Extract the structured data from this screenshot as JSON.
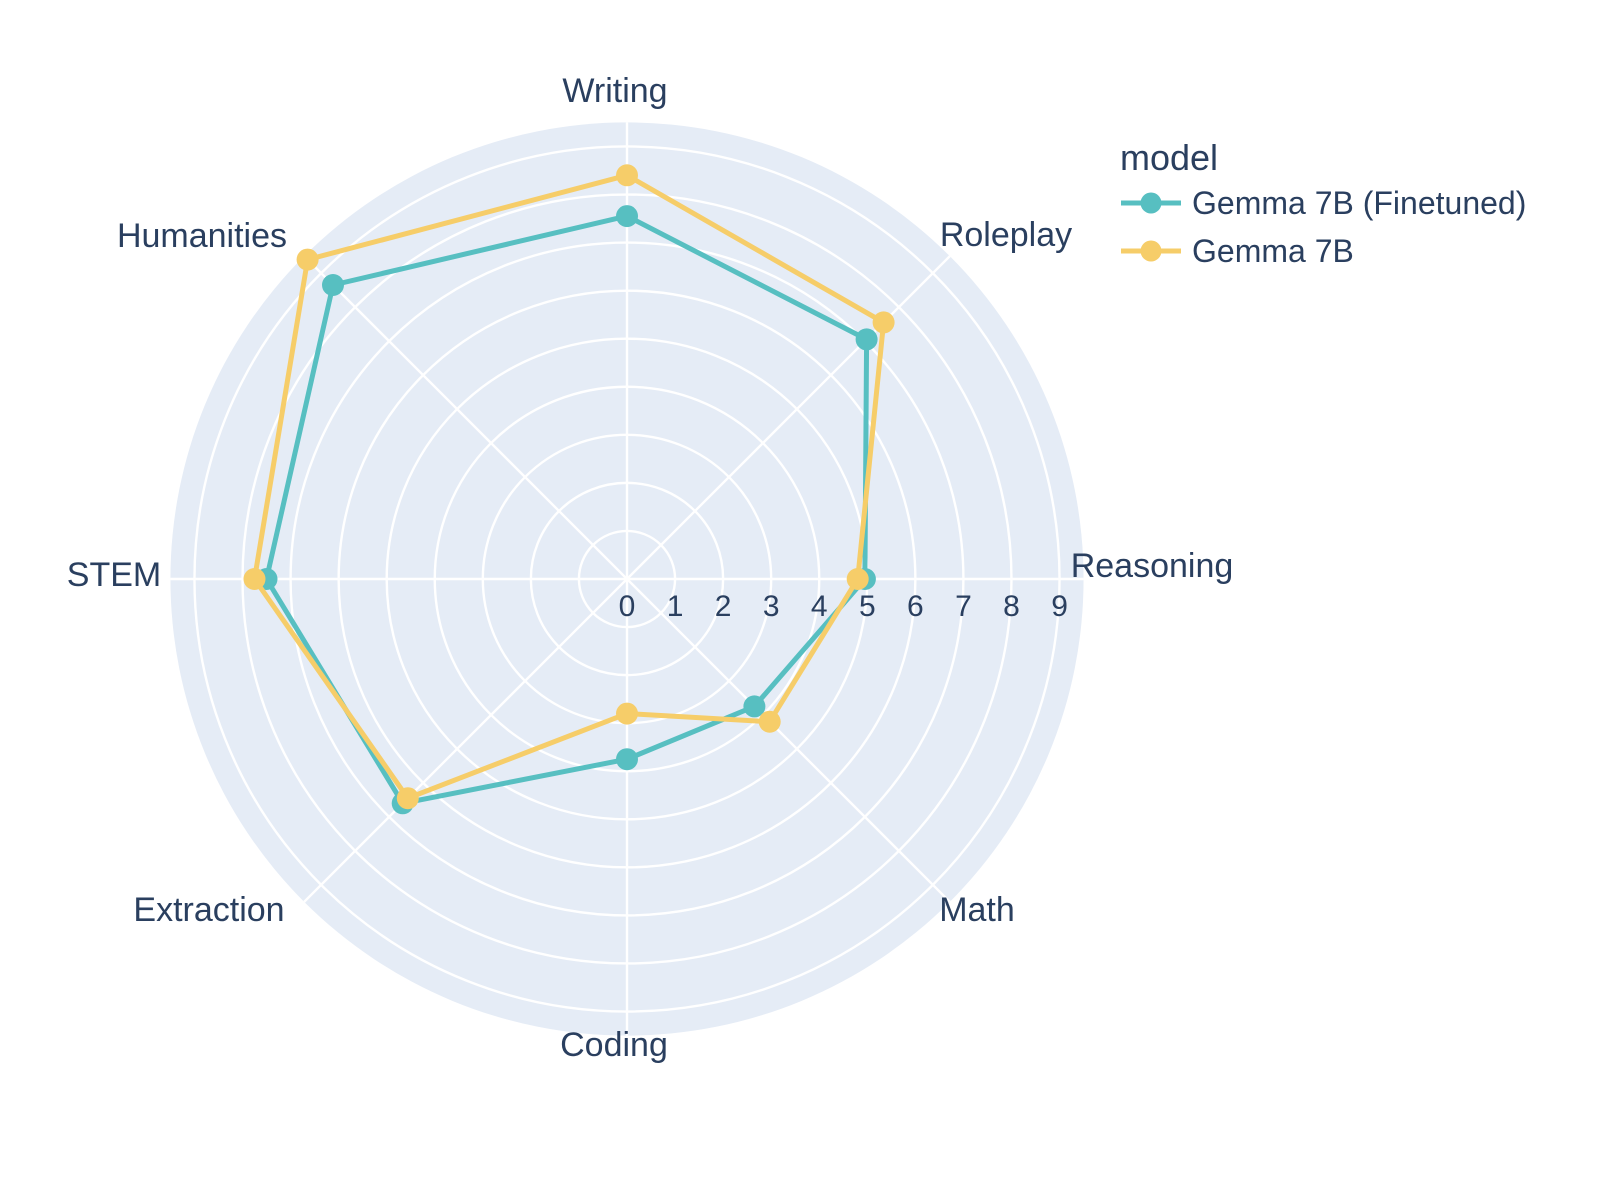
{
  "chart_data": {
    "type": "radar",
    "legend_title": "model",
    "categories": [
      "Writing",
      "Roleplay",
      "Reasoning",
      "Math",
      "Coding",
      "Extraction",
      "STEM",
      "Humanities"
    ],
    "series": [
      {
        "name": "Gemma 7B (Finetuned)",
        "color": "#57BFC1",
        "values": [
          7.55,
          7.05,
          4.95,
          3.75,
          3.75,
          6.6,
          7.5,
          8.65
        ]
      },
      {
        "name": "Gemma 7B",
        "color": "#F6CD69",
        "values": [
          8.4,
          7.55,
          4.8,
          4.2,
          2.8,
          6.45,
          7.75,
          9.4
        ]
      }
    ],
    "radial_ticks": [
      "0",
      "1",
      "2",
      "3",
      "4",
      "5",
      "6",
      "7",
      "8",
      "9"
    ],
    "radial_range": [
      0,
      9.5
    ],
    "angular_start_deg": 90,
    "angular_direction": "clockwise",
    "grid": true,
    "legend_position": "top-right",
    "colors": {
      "background_disk": "#E5ECF6",
      "grid_lines": "#FFFFFF",
      "text": "#2A3F5F",
      "page_background": "#FFFFFF"
    }
  }
}
